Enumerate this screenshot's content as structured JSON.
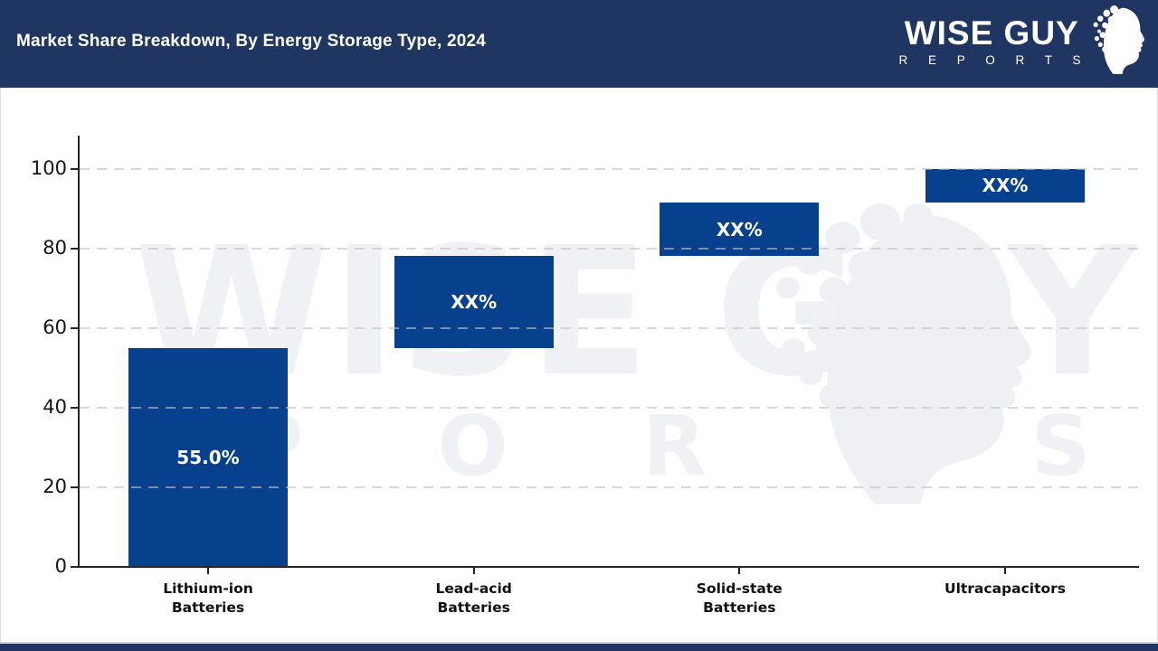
{
  "header": {
    "title": "Market Share Breakdown, By Energy Storage Type, 2024",
    "logo": {
      "line1": "WISE GUY",
      "line2": "R E P O R T S"
    }
  },
  "watermark": {
    "line1": "WISE GUY",
    "line2": "R E P O R T S"
  },
  "chart_data": {
    "type": "bar",
    "subtype": "floating-segment (waterfall style) market share bars",
    "title": "Market Share Breakdown, By Energy Storage Type, 2024",
    "xlabel": "",
    "ylabel": "",
    "categories": [
      "Lithium-ion Batteries",
      "Lead-acid Batteries",
      "Solid-state Batteries",
      "Ultracapacitors"
    ],
    "category_lines": [
      [
        "Lithium-ion",
        "Batteries"
      ],
      [
        "Lead-acid",
        "Batteries"
      ],
      [
        "Solid-state",
        "Batteries"
      ],
      [
        "Ultracapacitors"
      ]
    ],
    "segments": [
      {
        "category": "Lithium-ion Batteries",
        "start": 0,
        "end": 55,
        "label": "55.0%"
      },
      {
        "category": "Lead-acid Batteries",
        "start": 55,
        "end": 78,
        "label": "XX%"
      },
      {
        "category": "Solid-state Batteries",
        "start": 78,
        "end": 91.5,
        "label": "XX%"
      },
      {
        "category": "Ultracapacitors",
        "start": 91.5,
        "end": 100,
        "label": "XX%"
      }
    ],
    "yticks": [
      0,
      20,
      40,
      60,
      80,
      100
    ],
    "ylim": [
      0,
      108
    ],
    "grid": "horizontal dashed",
    "legend": "none",
    "bar_color": "#07408d"
  },
  "colors": {
    "header_bg": "#1f3562",
    "footer_bg": "#1f3562",
    "bar": "#07408d",
    "axis": "#262626",
    "grid": "#c1c1c1",
    "bar_label_text": "#ffffff",
    "watermark": "#f0f1f4"
  }
}
